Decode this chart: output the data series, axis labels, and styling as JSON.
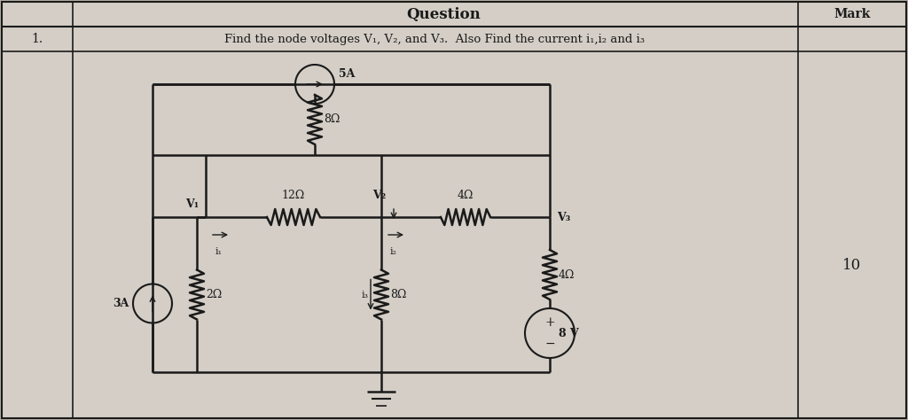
{
  "bg_outer": "#b8b0a4",
  "bg_inner": "#d4cec6",
  "bg_circuit": "#ccc6be",
  "title": "Question",
  "mark_label": "Mark",
  "q_num": "1.",
  "question": "Find the node voltages V₁, V₂, and V₃.  Also Find the current i₁,i₂ and i₃",
  "mark_val": "10",
  "lw_wire": 1.8,
  "lw_circle": 1.5,
  "resistor_amp": 0.013,
  "font_label": 9,
  "font_title": 11
}
